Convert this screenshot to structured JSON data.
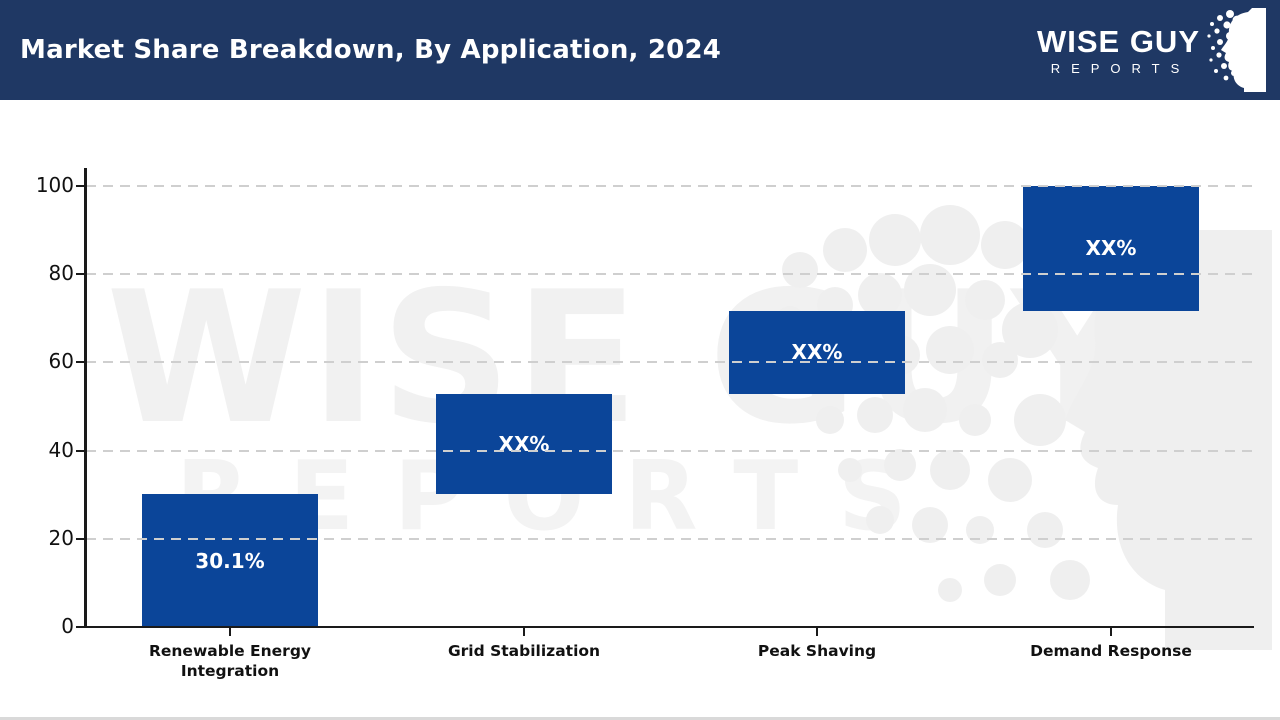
{
  "header": {
    "title": "Market Share Breakdown, By Application, 2024",
    "logo": {
      "line1": "WISE GUY",
      "line2": "REPORTS",
      "face_icon": "dotted-face-profile-icon"
    }
  },
  "watermark": {
    "line1": "WISE GUY",
    "line2": "REPORTS"
  },
  "colors": {
    "header_bg": "#1f3864",
    "bar": "#0b4599",
    "bar_label": "#ffffff",
    "gridline": "#cfcfcf",
    "axis": "#1a1a1a",
    "watermark": "#f1f1f1",
    "footer_line": "#d9d9d9"
  },
  "chart_data": {
    "type": "bar",
    "subtype": "waterfall-floating-bars",
    "title": "Market Share Breakdown, By Application, 2024",
    "xlabel": "",
    "ylabel": "",
    "ylim": [
      0,
      100
    ],
    "yticks": [
      0,
      20,
      40,
      60,
      80,
      100
    ],
    "grid": "horizontal-dashed",
    "legend": "none",
    "categories": [
      "Renewable Energy Integration",
      "Grid Stabilization",
      "Peak Shaving",
      "Demand Response"
    ],
    "segments": [
      {
        "category": "Renewable Energy Integration",
        "start": 0,
        "end": 30.1,
        "label": "30.1%"
      },
      {
        "category": "Grid Stabilization",
        "start": 30.1,
        "end": 52.9,
        "label": "XX%"
      },
      {
        "category": "Peak Shaving",
        "start": 52.9,
        "end": 71.7,
        "label": "XX%"
      },
      {
        "category": "Demand Response",
        "start": 71.7,
        "end": 100,
        "label": "XX%"
      }
    ]
  }
}
